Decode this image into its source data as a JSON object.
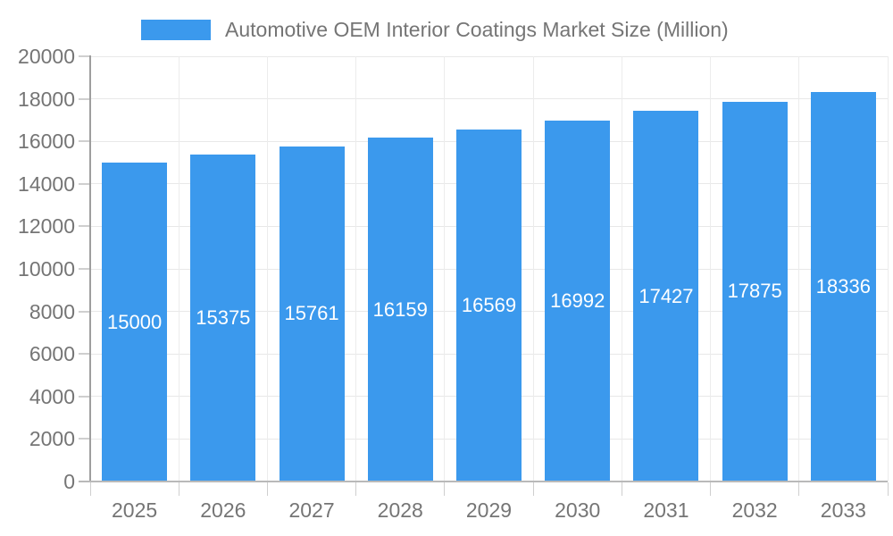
{
  "chart_data": {
    "type": "bar",
    "title": "Automotive OEM Interior Coatings Market Size (Million)",
    "categories": [
      "2025",
      "2026",
      "2027",
      "2028",
      "2029",
      "2030",
      "2031",
      "2032",
      "2033"
    ],
    "values": [
      15000,
      15375,
      15761,
      16159,
      16569,
      16992,
      17427,
      17875,
      18336
    ],
    "bar_labels": [
      "15000",
      "15375",
      "15761",
      "16159",
      "16569",
      "16992",
      "17427",
      "17875",
      "18336"
    ],
    "xlabel": "",
    "ylabel": "",
    "ylim": [
      0,
      20000
    ],
    "ytick_step": 2000,
    "yticks": [
      0,
      2000,
      4000,
      6000,
      8000,
      10000,
      12000,
      14000,
      16000,
      18000,
      20000
    ],
    "grid": true,
    "legend_position": "top",
    "colors": {
      "bar": "#3B99ED",
      "axis_text": "#757575",
      "bar_label": "#FFFFFF",
      "grid_horizontal": "#E8E8E8",
      "grid_vertical": "#ECECEC",
      "y_axis_line": "#9E9E9E",
      "x_axis_line": "#B9B9B9",
      "background": "#FFFFFF"
    }
  }
}
